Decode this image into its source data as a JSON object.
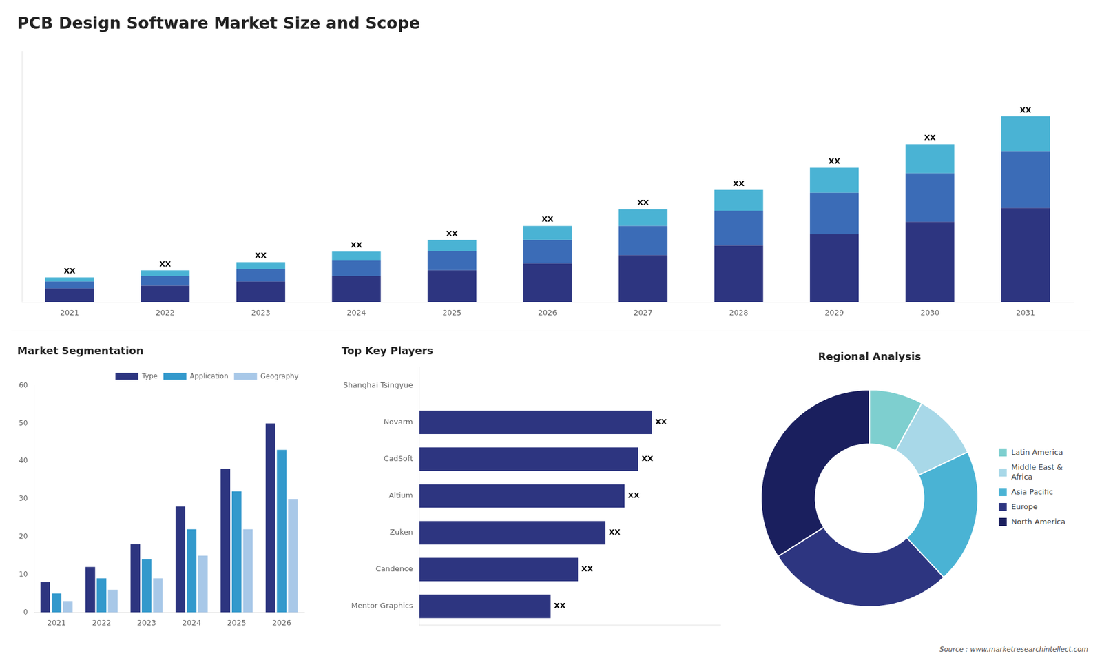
{
  "chart_data": [
    {
      "type": "bar",
      "title": "PCB Design Software Market Size and Scope",
      "stacked": true,
      "categories": [
        "2021",
        "2022",
        "2023",
        "2024",
        "2025",
        "2026",
        "2027",
        "2028",
        "2029",
        "2030",
        "2031"
      ],
      "series": [
        {
          "color": "#2d3580",
          "values": [
            1,
            1.2,
            1.5,
            1.9,
            2.3,
            2.8,
            3.4,
            4.1,
            4.9,
            5.8,
            6.8
          ]
        },
        {
          "color": "#3b6cb7",
          "values": [
            0.5,
            0.7,
            0.9,
            1.1,
            1.4,
            1.7,
            2.1,
            2.5,
            3.0,
            3.5,
            4.1
          ]
        },
        {
          "color": "#4ab3d4",
          "values": [
            0.3,
            0.4,
            0.5,
            0.65,
            0.8,
            1.0,
            1.2,
            1.5,
            1.8,
            2.1,
            2.5
          ]
        }
      ],
      "annotations": [
        "XX",
        "XX",
        "XX",
        "XX",
        "XX",
        "XX",
        "XX",
        "XX",
        "XX",
        "XX",
        "XX"
      ],
      "ylim": [
        0,
        18.09
      ],
      "tick_labels": "x",
      "grid": false
    },
    {
      "type": "bar",
      "title": "Market Segmentation",
      "categories": [
        "2021",
        "2022",
        "2023",
        "2024",
        "2025",
        "2026"
      ],
      "series": [
        {
          "name": "Type",
          "color": "#2d3580",
          "values": [
            8,
            12,
            18,
            28,
            38,
            50
          ]
        },
        {
          "name": "Application",
          "color": "#3399cc",
          "values": [
            5,
            9,
            14,
            22,
            32,
            43
          ]
        },
        {
          "name": "Geography",
          "color": "#a8c8e8",
          "values": [
            3,
            6,
            9,
            15,
            22,
            30
          ]
        }
      ],
      "ylim": [
        0,
        60
      ],
      "yticks": [
        0,
        10,
        20,
        30,
        40,
        50,
        60
      ],
      "legend": "upper right",
      "grid": false
    },
    {
      "type": "bar",
      "orientation": "horizontal",
      "title": "Top Key Players",
      "categories": [
        "Shanghai Tsingyue",
        "Novarm",
        "CadSoft",
        "Altium",
        "Zuken",
        "Candence",
        "Mentor Graphics"
      ],
      "values": [
        0,
        85,
        80,
        75,
        68,
        58,
        48
      ],
      "value_labels": [
        null,
        "XX",
        "XX",
        "XX",
        "XX",
        "XX",
        "XX"
      ],
      "color": "#2d3580",
      "xlim": [
        0,
        110
      ],
      "tick_labels": "y",
      "grid": false
    },
    {
      "type": "doughnut",
      "title": "Regional Analysis",
      "categories": [
        "Latin America",
        "Middle East &\nAfrica",
        "Asia Pacific",
        "Europe",
        "North America"
      ],
      "values": [
        8,
        10,
        20,
        28,
        34
      ],
      "colors": [
        "#7ecfcf",
        "#a8d8e8",
        "#4ab3d4",
        "#2d3580",
        "#1a1f5e"
      ],
      "legend": "right",
      "annotations": [
        "Source : www.marketresearchintellect.com"
      ]
    }
  ]
}
